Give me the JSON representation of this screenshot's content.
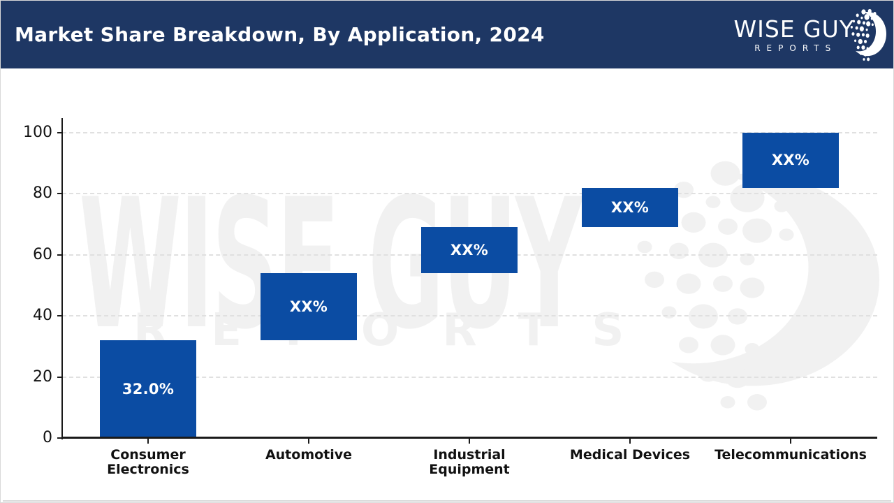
{
  "header": {
    "title": "Market Share Breakdown, By Application, 2024",
    "logo": {
      "wordmark": "WISE GUY",
      "subtitle": "REPORTS"
    }
  },
  "watermark": {
    "wordmark": "WISE GUY",
    "subtitle": "REPORTS"
  },
  "colors": {
    "background": "#FFFFFF",
    "header_bg": "#1E3764",
    "bar_fill": "#0B4CA3",
    "bar_label": "#FFFFFF",
    "grid_line": "#E0E0E0",
    "axis_line": "#1A1A1A",
    "tick_label": "#111111",
    "category_label": "#111111",
    "watermark": "#F1F1F1",
    "divider": "#D9D9D9"
  },
  "chart_data": {
    "type": "bar",
    "subtype": "waterfall",
    "title": "Market Share Breakdown, By Application, 2024",
    "categories": [
      "Consumer Electronics",
      "Automotive",
      "Industrial Equipment",
      "Medical Devices",
      "Telecommunications"
    ],
    "category_label_lines": [
      [
        "Consumer",
        "Electronics"
      ],
      [
        "Automotive"
      ],
      [
        "Industrial",
        "Equipment"
      ],
      [
        "Medical Devices"
      ],
      [
        "Telecommunications"
      ]
    ],
    "segments": [
      {
        "category": "Consumer Electronics",
        "start": 0,
        "end": 32,
        "value": 32,
        "label": "32.0%"
      },
      {
        "category": "Automotive",
        "start": 32,
        "end": 54,
        "value": 22,
        "label": "XX%"
      },
      {
        "category": "Industrial Equipment",
        "start": 54,
        "end": 69,
        "value": 15,
        "label": "XX%"
      },
      {
        "category": "Medical Devices",
        "start": 69,
        "end": 82,
        "value": 13,
        "label": "XX%"
      },
      {
        "category": "Telecommunications",
        "start": 82,
        "end": 100,
        "value": 18,
        "label": "XX%"
      }
    ],
    "xlabel": "",
    "ylabel": "",
    "ylim": [
      0,
      100
    ],
    "yticks": [
      0,
      20,
      40,
      60,
      80,
      100
    ],
    "grid": "horizontal dashed",
    "legend": "none"
  }
}
